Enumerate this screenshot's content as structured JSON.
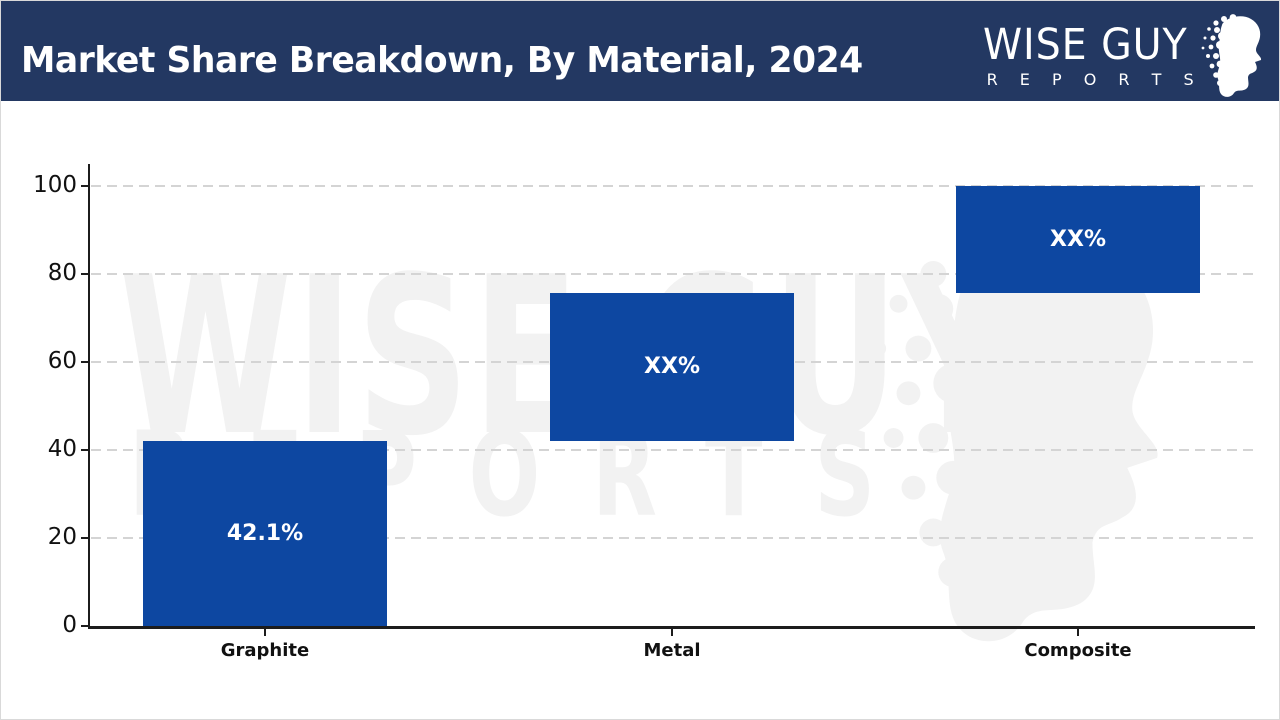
{
  "header": {
    "title": "Market Share Breakdown, By Material, 2024",
    "bg_color": "#233862",
    "logo": {
      "line1": "WISE GUY",
      "line2": "R E P O R T S"
    }
  },
  "watermark": {
    "line1": "WISE GUY",
    "line2": "REPORTS"
  },
  "chart_data": {
    "type": "bar",
    "variant": "waterfall",
    "title": "Market Share Breakdown, By Material, 2024",
    "categories": [
      "Graphite",
      "Metal",
      "Composite"
    ],
    "series": [
      {
        "name": "Market share (%)",
        "segments": [
          {
            "category": "Graphite",
            "start": 0,
            "end": 42.1,
            "label": "42.1%"
          },
          {
            "category": "Metal",
            "start": 42.1,
            "end": 75.7,
            "label": "XX%"
          },
          {
            "category": "Composite",
            "start": 75.7,
            "end": 100,
            "label": "XX%"
          }
        ]
      }
    ],
    "ylim": [
      0,
      105
    ],
    "yticks": [
      0,
      20,
      40,
      60,
      80,
      100
    ],
    "grid": true,
    "grid_style": "dashed",
    "legend": false,
    "bar_color": "#0d47a1",
    "bar_label_color": "#ffffff",
    "axis_color": "#1c1c1c"
  }
}
